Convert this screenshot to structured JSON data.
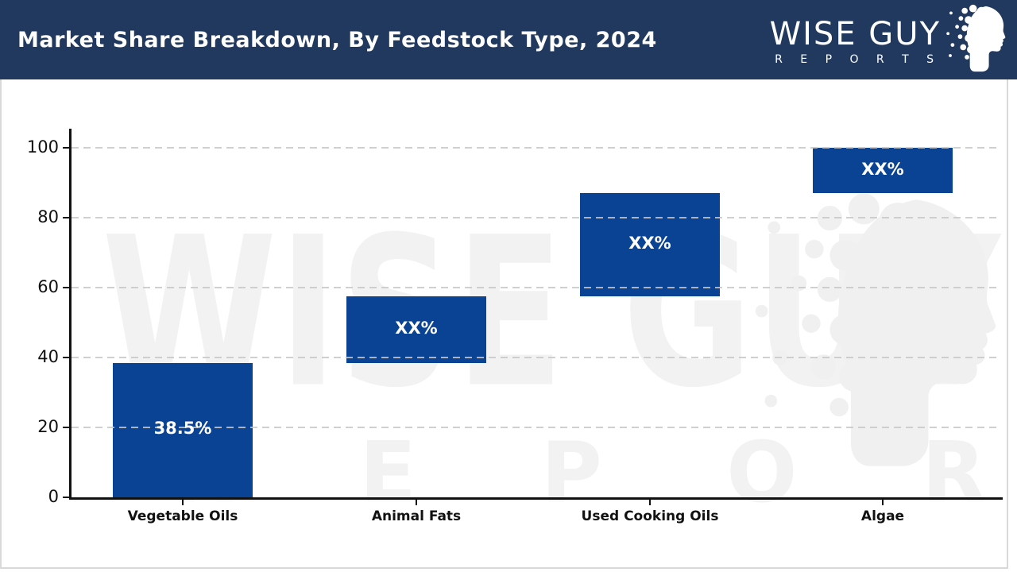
{
  "header": {
    "title": "Market Share Breakdown, By Feedstock Type, 2024",
    "logo": {
      "line1": "WISE GUY",
      "line2": "R E P O R T S",
      "face_icon": "face-profile-dots-icon"
    }
  },
  "watermark": {
    "line1": "WISE GUY",
    "line2": "R E P O R T S",
    "face_icon": "face-profile-dots-icon"
  },
  "colors": {
    "header_bg": "#21385f",
    "header_text": "#ffffff",
    "bar": "#0a4294",
    "bar_label": "#ffffff",
    "grid": "#c8c8c8",
    "axis": "#111111",
    "watermark": "#f2f2f2"
  },
  "chart_data": {
    "type": "bar",
    "subtype": "waterfall",
    "title": "Market Share Breakdown, By Feedstock Type, 2024",
    "categories": [
      "Vegetable Oils",
      "Animal Fats",
      "Used Cooking Oils",
      "Algae"
    ],
    "segments": [
      {
        "category": "Vegetable Oils",
        "start": 0,
        "end": 38.5,
        "label": "38.5%"
      },
      {
        "category": "Animal Fats",
        "start": 38.5,
        "end": 57.5,
        "label": "XX%"
      },
      {
        "category": "Used Cooking Oils",
        "start": 57.5,
        "end": 87,
        "label": "XX%"
      },
      {
        "category": "Algae",
        "start": 87,
        "end": 100,
        "label": "XX%"
      }
    ],
    "ylim": [
      0,
      105
    ],
    "yticks": [
      0,
      20,
      40,
      60,
      80,
      100
    ],
    "grid": "horizontal-dashed",
    "legend": "none",
    "xlabel": "",
    "ylabel": ""
  }
}
